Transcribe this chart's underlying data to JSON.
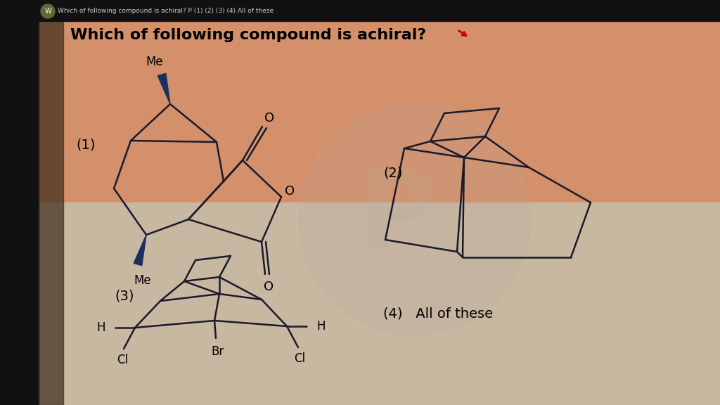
{
  "title_small": "Which of following compound is achiral? P (1) (2) (3) (4) All of these",
  "title_large": "Which of following compound is achiral?",
  "bg_color_main": "#d4956a",
  "bg_color_bottom": "#c8b8a8",
  "bg_color_left": "#1a1a1a",
  "top_bar_color": "#111111",
  "text_color": "#000000",
  "option1_label": "(1)",
  "option2_label": "(2)",
  "option3_label": "(3)",
  "option4_label": "(4)   All of these",
  "arrow_color": "#cc0000",
  "line_color": "#1a1a2a",
  "wedge_color": "#1a3060"
}
